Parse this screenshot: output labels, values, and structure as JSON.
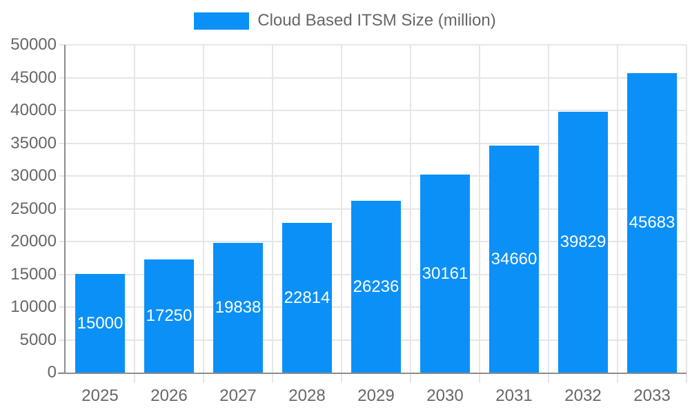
{
  "legend": {
    "label": "Cloud Based ITSM Size (million)"
  },
  "chart_data": {
    "type": "bar",
    "title": "Cloud Based ITSM Size (million)",
    "series_name": "Cloud Based ITSM Size (million)",
    "categories": [
      "2025",
      "2026",
      "2027",
      "2028",
      "2029",
      "2030",
      "2031",
      "2032",
      "2033"
    ],
    "values": [
      15000,
      17250,
      19838,
      22814,
      26236,
      30161,
      34660,
      39829,
      45683
    ],
    "value_labels": [
      "15000",
      "17250",
      "19838",
      "22814",
      "26236",
      "30161",
      "34660",
      "39829",
      "45683"
    ],
    "xlabel": "",
    "ylabel": "",
    "ylim": [
      0,
      50000
    ],
    "ytick_step": 5000,
    "yticks": [
      0,
      5000,
      10000,
      15000,
      20000,
      25000,
      30000,
      35000,
      40000,
      45000,
      50000
    ],
    "grid": true,
    "legend_position": "top",
    "colors": {
      "bar": "#0b90f8",
      "bar_label": "#ffffff",
      "axis_text": "#666666",
      "legend_text": "#666666",
      "grid": "#e6e6e6",
      "axis_line": "#8c8c8c"
    }
  }
}
